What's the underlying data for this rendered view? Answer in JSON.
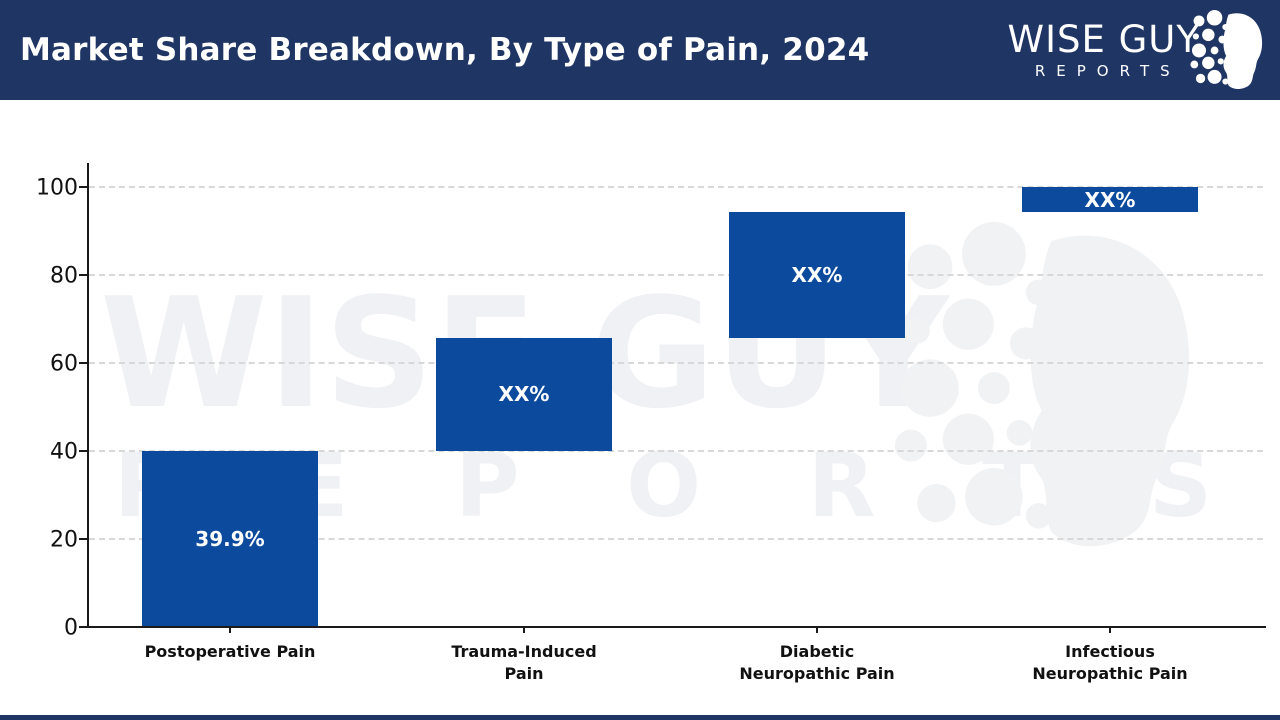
{
  "header": {
    "title": "Market Share Breakdown, By Type of Pain, 2024",
    "logo": {
      "brand_line1": "WISE GUY",
      "brand_line2": "REPORTS"
    }
  },
  "watermark": {
    "line1": "WISE GUY",
    "line2": "R E P O R T S"
  },
  "colors": {
    "header_bg": "#1f3564",
    "bar": "#0c4a9e",
    "bar_label": "#ffffff",
    "axis": "#1a1a1a",
    "gridline": "#d8d8d8",
    "watermark": "#f0f1f4",
    "category_label": "#111111"
  },
  "chart_data": {
    "type": "bar",
    "subtype": "floating-waterfall",
    "title": "Market Share Breakdown, By Type of Pain, 2024",
    "categories": [
      "Postoperative Pain",
      "Trauma-Induced\nPain",
      "Diabetic\nNeuropathic Pain",
      "Infectious\nNeuropathic Pain"
    ],
    "bars": [
      {
        "label": "39.9%",
        "start": 0,
        "end": 39.9
      },
      {
        "label": "XX%",
        "start": 40.0,
        "end": 65.6
      },
      {
        "label": "XX%",
        "start": 65.6,
        "end": 94.1
      },
      {
        "label": "XX%",
        "start": 94.1,
        "end": 99.8
      }
    ],
    "ylim": [
      0,
      105
    ],
    "yticks": [
      0,
      20,
      40,
      60,
      80,
      100
    ],
    "xlabel": "",
    "ylabel": "",
    "grid": "horizontal-dashed",
    "legend": "none"
  }
}
